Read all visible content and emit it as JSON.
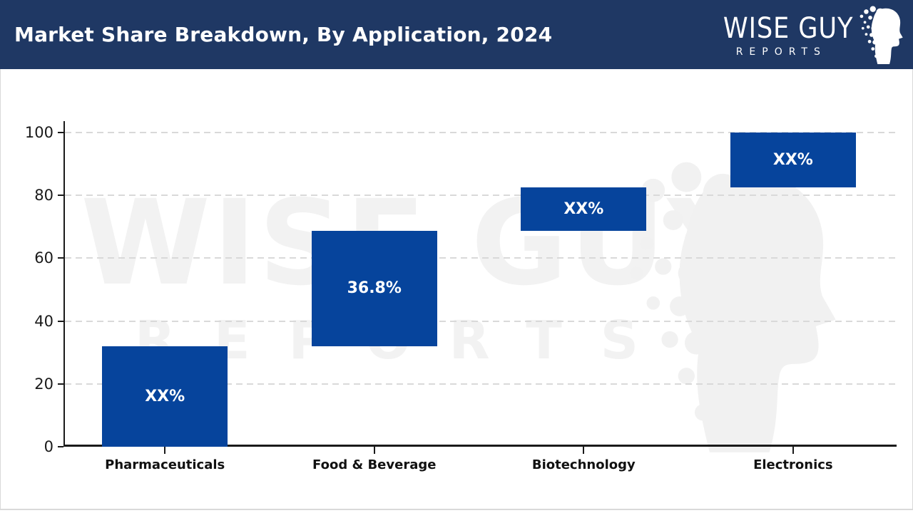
{
  "header": {
    "title": "Market Share Breakdown, By Application, 2024",
    "background": "#1f3864",
    "logo": {
      "wordmark": "WISE GUY",
      "subtext": "REPORTS"
    }
  },
  "watermark": {
    "wordmark": "WISE GUY",
    "subtext": "REPORTS"
  },
  "chart_data": {
    "type": "bar",
    "subtype": "floating-segment-waterfall",
    "title": "Market Share Breakdown, By Application, 2024",
    "categories": [
      "Pharmaceuticals",
      "Food & Beverage",
      "Biotechnology",
      "Electronics"
    ],
    "segments": [
      {
        "category": "Pharmaceuticals",
        "start": 0,
        "end": 32,
        "label": "XX%"
      },
      {
        "category": "Food & Beverage",
        "start": 32,
        "end": 68.8,
        "label": "36.8%"
      },
      {
        "category": "Biotechnology",
        "start": 68.8,
        "end": 82.5,
        "label": "XX%"
      },
      {
        "category": "Electronics",
        "start": 82.5,
        "end": 100,
        "label": "XX%"
      }
    ],
    "ylim": [
      0,
      100
    ],
    "yticks": [
      "0",
      "20",
      "40",
      "60",
      "80",
      "100"
    ],
    "grid": "horizontal-dashed",
    "legend_position": "none",
    "bar_color": "#06449c",
    "bar_label_color": "#ffffff",
    "axis_color": "#1a1a1a",
    "gridline_color": "#d9d9d9"
  }
}
